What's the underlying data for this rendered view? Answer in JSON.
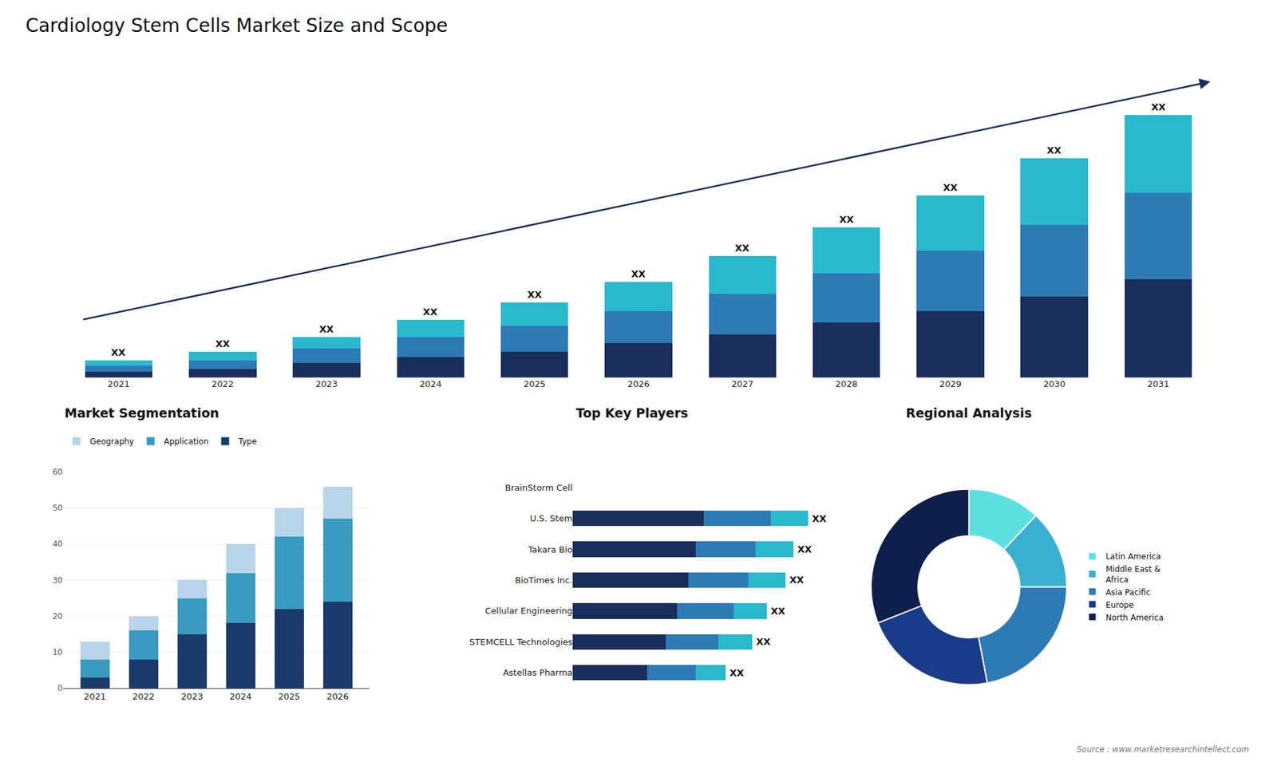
{
  "title": "Cardiology Stem Cells Market Size and Scope",
  "annotations": [
    "Source : www.marketresearchintellect.com"
  ],
  "chart_data": [
    {
      "type": "bar",
      "stacked": true,
      "categories": [
        "2021",
        "2022",
        "2023",
        "2024",
        "2025",
        "2026",
        "2027",
        "2028",
        "2029",
        "2030",
        "2031"
      ],
      "series": [
        {
          "color": "#1a2e5a",
          "values": [
            2,
            3,
            5,
            7,
            9,
            12,
            15,
            19,
            23,
            28,
            34
          ]
        },
        {
          "color": "#2d7ab5",
          "values": [
            2,
            3,
            5,
            7,
            9,
            11,
            14,
            17,
            21,
            25,
            30
          ]
        },
        {
          "color": "#2ab8cc",
          "values": [
            2,
            3,
            4,
            6,
            8,
            10,
            13,
            16,
            19,
            23,
            27
          ]
        }
      ],
      "ylim": [
        0,
        103
      ],
      "tick_labels": "x",
      "grid": false,
      "annotations": [
        {
          "category": "2021",
          "text": "XX"
        },
        {
          "category": "2022",
          "text": "XX"
        },
        {
          "category": "2023",
          "text": "XX"
        },
        {
          "category": "2024",
          "text": "XX"
        },
        {
          "category": "2025",
          "text": "XX"
        },
        {
          "category": "2026",
          "text": "XX"
        },
        {
          "category": "2027",
          "text": "XX"
        },
        {
          "category": "2028",
          "text": "XX"
        },
        {
          "category": "2029",
          "text": "XX"
        },
        {
          "category": "2030",
          "text": "XX"
        },
        {
          "category": "2031",
          "text": "XX"
        }
      ]
    },
    {
      "type": "bar",
      "stacked": true,
      "title": "Market Segmentation",
      "categories": [
        "2021",
        "2022",
        "2023",
        "2024",
        "2025",
        "2026"
      ],
      "series": [
        {
          "name": "Type",
          "color": "#1a3a6b",
          "values": [
            3,
            8,
            15,
            18,
            22,
            24
          ]
        },
        {
          "name": "Application",
          "color": "#3a9abf",
          "values": [
            5,
            8,
            10,
            14,
            20,
            23
          ]
        },
        {
          "name": "Geography",
          "color": "#b8d4e8",
          "values": [
            5,
            4,
            5,
            8,
            8,
            9
          ]
        }
      ],
      "ylim": [
        0,
        60
      ],
      "yticks": [
        0,
        10,
        20,
        30,
        40,
        50,
        60
      ],
      "grid": true,
      "legend": "top"
    },
    {
      "type": "bar",
      "orientation": "horizontal",
      "stacked": true,
      "title": "Top Key Players",
      "categories": [
        "BrainStorm Cell",
        "U.S. Stem",
        "Takara Bio",
        "BioTimes Inc.",
        "Cellular Engineering",
        "STEMCELL Technologies",
        "Astellas Pharma"
      ],
      "series": [
        {
          "color": "#1a2e5a",
          "values": [
            0,
            35,
            33,
            31,
            28,
            25,
            20
          ]
        },
        {
          "color": "#2d7ab5",
          "values": [
            0,
            18,
            16,
            16,
            15,
            14,
            13
          ]
        },
        {
          "color": "#2ab8cc",
          "values": [
            0,
            10,
            10,
            10,
            9,
            9,
            8
          ]
        }
      ],
      "xlim": [
        -38,
        70
      ],
      "tick_labels": "y",
      "grid": false,
      "annotations": [
        {
          "category": "U.S. Stem",
          "text": "XX"
        },
        {
          "category": "Takara Bio",
          "text": "XX"
        },
        {
          "category": "BioTimes Inc.",
          "text": "XX"
        },
        {
          "category": "Cellular Engineering",
          "text": "XX"
        },
        {
          "category": "STEMCELL Technologies",
          "text": "XX"
        },
        {
          "category": "Astellas Pharma",
          "text": "XX"
        }
      ]
    },
    {
      "type": "pie",
      "title": "Regional Analysis",
      "categories": [
        "Latin America",
        "Middle East &\nAfrica",
        "Asia Pacific",
        "Europe",
        "North America"
      ],
      "values": [
        12,
        13,
        22,
        22,
        31
      ],
      "colors": [
        "#5de0e0",
        "#3ab0d0",
        "#2d7ab5",
        "#1a3a8a",
        "#0d1f4a"
      ],
      "legend": "right"
    }
  ]
}
